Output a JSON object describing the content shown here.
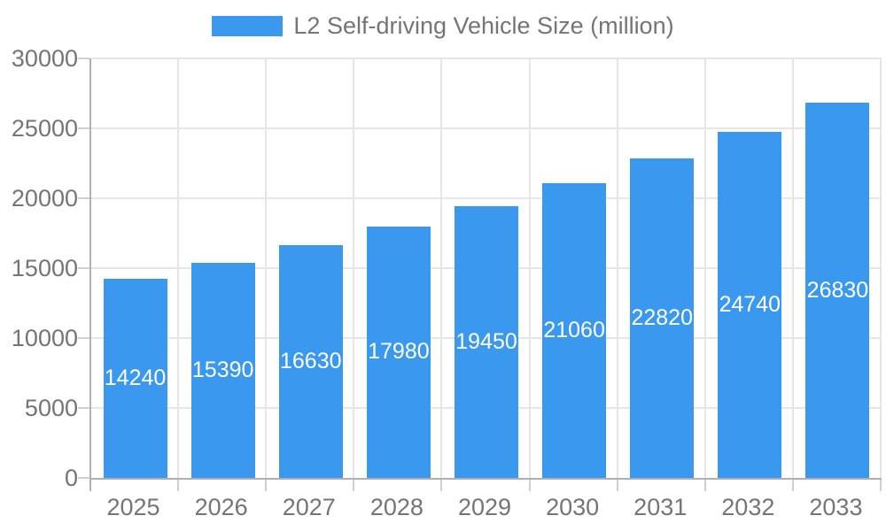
{
  "chart_data": {
    "type": "bar",
    "legend": "L2 Self-driving Vehicle Size (million)",
    "categories": [
      "2025",
      "2026",
      "2027",
      "2028",
      "2029",
      "2030",
      "2031",
      "2032",
      "2033"
    ],
    "values": [
      14240,
      15390,
      16630,
      17980,
      19450,
      21060,
      22820,
      24740,
      26830
    ],
    "xlabel": "",
    "ylabel": "",
    "ylim": [
      0,
      30000
    ],
    "ytick_step": 5000,
    "ytick_labels": [
      "0",
      "5000",
      "10000",
      "15000",
      "20000",
      "25000",
      "30000"
    ],
    "grid": true,
    "legend_position": "top-center",
    "bar_label_position": "inside-center",
    "colors": {
      "bar": "#3A99EE",
      "bar_label": "#ffffff",
      "grid": "#e6e6e6",
      "axis": "#b0b0b0",
      "tick": "#d0d0d0",
      "text": "#757575",
      "background": "#ffffff"
    }
  }
}
